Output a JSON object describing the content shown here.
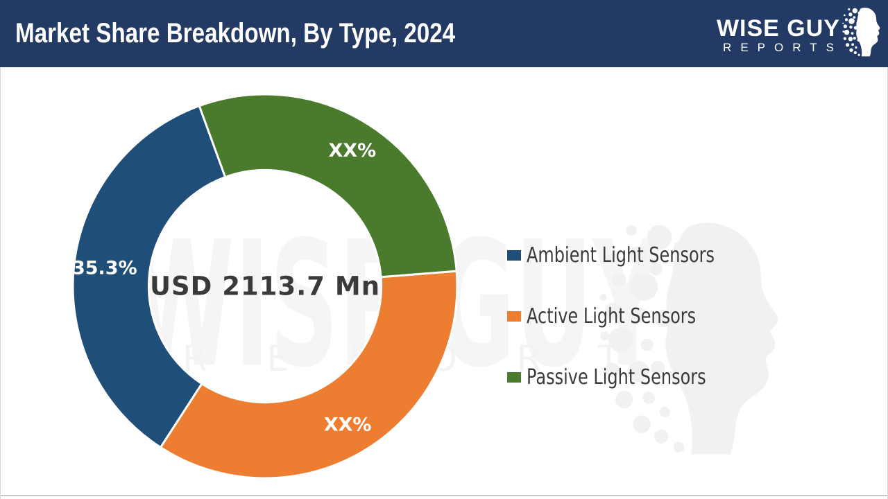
{
  "header": {
    "title": "Market Share Breakdown, By Type, 2024",
    "logo": {
      "line1": "WISE GUY",
      "line2": "REPORTS"
    }
  },
  "watermark": {
    "line1": "WISE GUY",
    "line2": "REPORTS"
  },
  "chart_data": {
    "type": "pie",
    "subtype": "donut",
    "title": "Market Share Breakdown, By Type, 2024",
    "center_label": "USD 2113.7 Mn",
    "categories": [
      "Ambient Light Sensors",
      "Active Light Sensors",
      "Passive Light Sensors"
    ],
    "values_pct_estimated": [
      35.3,
      35.4,
      29.3
    ],
    "displayed_slice_labels": [
      "35.3%",
      "XX%",
      "XX%"
    ],
    "colors": [
      "#1F4E79",
      "#ED7D31",
      "#4A7A2B"
    ],
    "start_angle_deg": 110,
    "direction": "counterclockwise",
    "inner_radius_ratio": 0.605,
    "label_radius_ratio": 0.84,
    "legend_position": "right"
  },
  "colors": {
    "header_background": "#223A64",
    "header_text": "#FFFFFF",
    "slice_label_text": "#FFFFFF",
    "center_text": "#3A3A3A",
    "legend_text": "#3A3A3A",
    "watermark": "#F4F4F4",
    "bottom_divider": "#C9C9C9"
  }
}
